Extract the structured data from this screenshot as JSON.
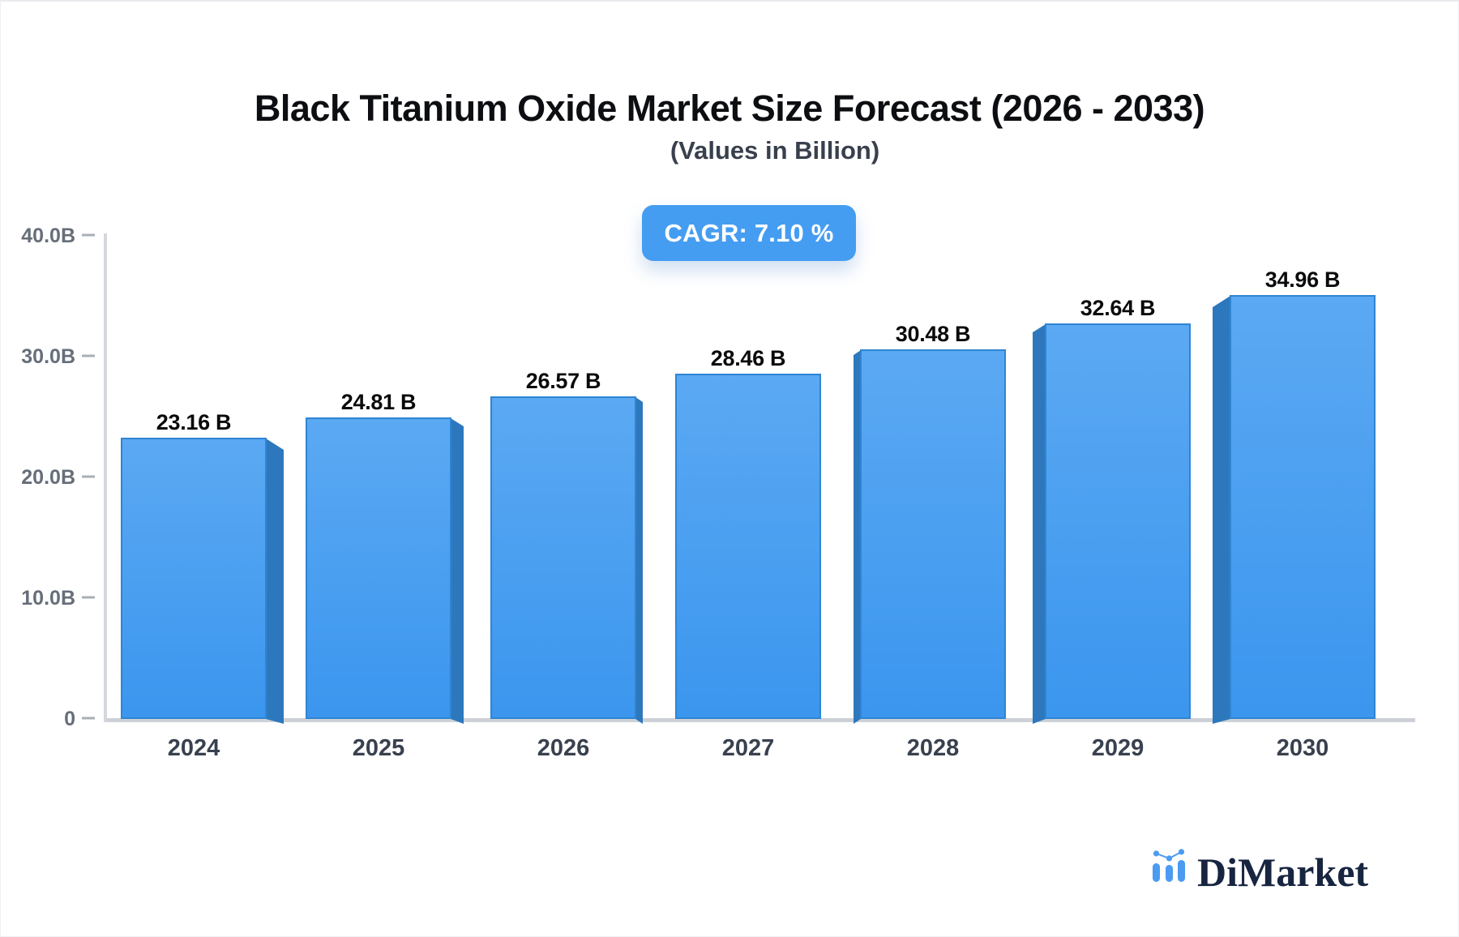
{
  "header": {
    "title": "Black Titanium Oxide Market Size Forecast (2026 - 2033)",
    "subtitle": "(Values in Billion)",
    "cagr_badge": "CAGR: 7.10 %"
  },
  "chart_data": {
    "type": "bar",
    "title": "Black Titanium Oxide Market Size Forecast (2026 - 2033)",
    "subtitle": "(Values in Billion)",
    "categories": [
      "2024",
      "2025",
      "2026",
      "2027",
      "2028",
      "2029",
      "2030"
    ],
    "values": [
      23.16,
      24.81,
      26.57,
      28.46,
      30.48,
      32.64,
      34.96
    ],
    "value_labels": [
      "23.16 B",
      "24.81 B",
      "26.57 B",
      "28.46 B",
      "30.48 B",
      "32.64 B",
      "34.96 B"
    ],
    "y_ticks": [
      "0",
      "10.0B",
      "20.0B",
      "30.0B",
      "40.0B"
    ],
    "y_tick_values": [
      0,
      10,
      20,
      30,
      40
    ],
    "ylim": [
      0,
      40
    ],
    "unit": "B",
    "cagr": "7.10 %",
    "grid": false,
    "legend": false,
    "bar_color_top": "#5ba9f3",
    "bar_color_bottom": "#3b96ee",
    "bar_side_color": "#2d78bd",
    "bar_stroke_color": "#2f85d3",
    "axis_color": "#d4d7dc",
    "tick_color": "#a9afb7",
    "y_label_color": "#666e7a",
    "x_label_color": "#39414f",
    "value_label_color": "#0a0a0a"
  },
  "logo": {
    "text": "DiMarket",
    "icon": "mini-bar-chart-icon",
    "text_color": "#182540",
    "icon_color": "#4b9bf1"
  }
}
